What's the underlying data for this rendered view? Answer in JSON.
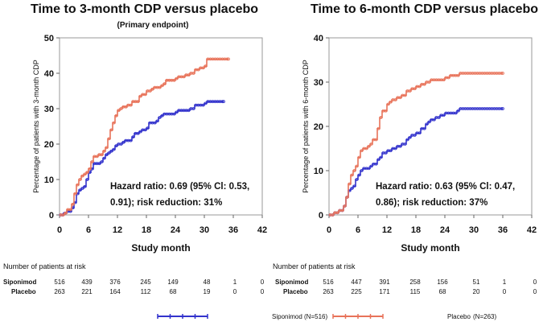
{
  "colors": {
    "siponimod": "#3333cc",
    "placebo": "#e8735a",
    "axis": "#999999"
  },
  "risk_header": "Number of patients at risk",
  "legend": {
    "siponimod": "Siponimod",
    "siponimod_n": "(N=516)",
    "placebo": "Placebo",
    "placebo_n": "(N=263)"
  },
  "chart_data": [
    {
      "type": "line",
      "title": "Time to 3-month CDP versus placebo",
      "subtitle": "(Primary endpoint)",
      "xlabel": "Study month",
      "ylabel": "Percentage of patients with 3-month CDP",
      "xlim": [
        0,
        42
      ],
      "ylim": [
        0,
        50
      ],
      "xticks": [
        "0",
        "6",
        "12",
        "18",
        "24",
        "30",
        "36",
        "42"
      ],
      "yticks": [
        "0",
        "10",
        "20",
        "30",
        "40",
        "50"
      ],
      "annotation": [
        "Hazard ratio: 0.69 (95% Cl: 0.53,",
        "0.91); risk reduction: 31%"
      ],
      "series": [
        {
          "name": "Siponimod",
          "color": "#3333cc",
          "x": [
            0,
            0.8,
            1.5,
            2.5,
            3,
            3.5,
            4,
            4.5,
            5,
            5.5,
            6,
            6.5,
            7,
            8.5,
            9,
            9.5,
            10,
            10.5,
            11,
            11.5,
            12,
            13,
            13.5,
            15,
            15.5,
            16.5,
            17,
            18,
            18.5,
            20,
            20.5,
            21,
            21.5,
            24,
            24.5,
            27,
            28,
            30,
            30.5,
            32,
            34
          ],
          "y": [
            0,
            0.5,
            1,
            2,
            3.5,
            6,
            7,
            7.5,
            8,
            10,
            12,
            13,
            14.5,
            15,
            16,
            17,
            17.5,
            18,
            18.5,
            19.5,
            20,
            20.5,
            21,
            22,
            23,
            23.5,
            24,
            24.5,
            26,
            26.5,
            27.5,
            28,
            28.5,
            29,
            29.5,
            30,
            31,
            31.5,
            32,
            32,
            32
          ]
        },
        {
          "name": "Placebo",
          "color": "#e8735a",
          "x": [
            0,
            1,
            1.5,
            2.5,
            3,
            3.5,
            4,
            4.5,
            5,
            5.5,
            6,
            6.5,
            7,
            8,
            9,
            9.5,
            10,
            10.5,
            11,
            11.5,
            12,
            12.5,
            13,
            14,
            15,
            16.5,
            17,
            18,
            19,
            19.5,
            21,
            21.5,
            22,
            24,
            24.5,
            26,
            27,
            28,
            29,
            30,
            30.5,
            32,
            35
          ],
          "y": [
            0,
            0.5,
            1.5,
            3,
            6,
            8.5,
            10,
            11,
            11.5,
            12,
            13,
            15,
            16.5,
            17,
            18,
            19,
            21.5,
            24,
            26,
            28,
            29.5,
            30,
            30.5,
            31,
            32,
            33.5,
            34,
            35,
            35.5,
            36,
            36.5,
            37,
            38,
            38.5,
            39,
            39.5,
            40,
            41,
            41.5,
            42,
            44,
            44,
            44
          ]
        }
      ],
      "risk_table": {
        "rows": [
          {
            "label": "Siponimod",
            "values": [
              "516",
              "439",
              "376",
              "245",
              "149",
              "48",
              "1",
              "0"
            ]
          },
          {
            "label": "Placebo",
            "values": [
              "263",
              "221",
              "164",
              "112",
              "68",
              "19",
              "0",
              "0"
            ]
          }
        ]
      }
    },
    {
      "type": "line",
      "title": "Time to 6-month CDP versus placebo",
      "subtitle": "",
      "xlabel": "Study month",
      "ylabel": "Percentage of patients with 6-month CDP",
      "xlim": [
        0,
        42
      ],
      "ylim": [
        0,
        40
      ],
      "xticks": [
        "0",
        "6",
        "12",
        "18",
        "24",
        "30",
        "36",
        "42"
      ],
      "yticks": [
        "0",
        "10",
        "20",
        "30",
        "40"
      ],
      "annotation": [
        "Hazard ratio: 0.63 (95% Cl: 0.47,",
        "0.86); risk reduction: 37%"
      ],
      "series": [
        {
          "name": "Siponimod",
          "color": "#3333cc",
          "x": [
            0,
            1,
            2,
            3,
            3.5,
            4,
            4.5,
            5,
            5.5,
            6,
            6.5,
            7,
            8.5,
            9,
            10,
            10.5,
            11,
            12,
            13,
            14,
            15,
            16,
            16.5,
            17,
            18,
            19,
            20,
            20.5,
            21,
            22,
            23,
            24,
            25,
            26.5,
            27,
            28,
            30,
            33,
            36
          ],
          "y": [
            0,
            0.5,
            1,
            2,
            4,
            5.5,
            6,
            6.5,
            8,
            9,
            10,
            10.5,
            11,
            11.5,
            12.5,
            13,
            14,
            14.5,
            15,
            15.5,
            16,
            17,
            17.5,
            18,
            18.5,
            19.5,
            20.5,
            21,
            21.5,
            22,
            22.5,
            23,
            23,
            23.5,
            24,
            24,
            24,
            24,
            24
          ]
        },
        {
          "name": "Placebo",
          "color": "#e8735a",
          "x": [
            0,
            1,
            2,
            3,
            3.5,
            4,
            4.5,
            5,
            5.5,
            6,
            6.5,
            7,
            8,
            8.5,
            9,
            10,
            10.5,
            11,
            12,
            12.5,
            13,
            14,
            15,
            16,
            17,
            18,
            19,
            20,
            21,
            22,
            24,
            25,
            26,
            27,
            28,
            30,
            33,
            36
          ],
          "y": [
            0,
            0.5,
            1,
            2,
            4,
            7,
            9,
            10,
            11,
            13,
            14.5,
            15,
            15.5,
            16,
            17,
            19.5,
            22,
            23.5,
            25,
            25.5,
            26,
            26.5,
            27,
            28,
            28.5,
            29,
            29.5,
            30,
            30.5,
            30.5,
            31,
            31.5,
            31.5,
            32,
            32,
            32,
            32,
            32
          ]
        }
      ],
      "risk_table": {
        "rows": [
          {
            "label": "Siponimod",
            "values": [
              "516",
              "447",
              "391",
              "258",
              "156",
              "51",
              "1",
              "0"
            ]
          },
          {
            "label": "Placebo",
            "values": [
              "263",
              "225",
              "171",
              "115",
              "68",
              "20",
              "0",
              "0"
            ]
          }
        ]
      }
    }
  ]
}
